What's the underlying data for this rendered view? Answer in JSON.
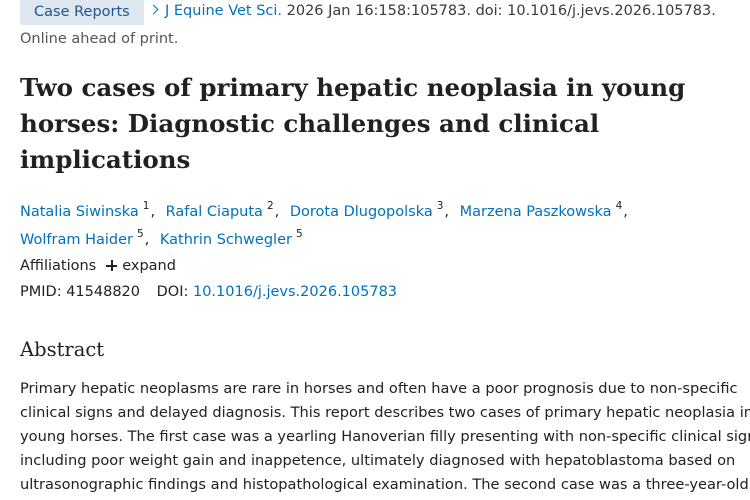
{
  "header": {
    "publication_type": "Case Reports",
    "journal": "J Equine Vet Sci.",
    "citation": "2026 Jan 16:158:105783. doi: 10.1016/j.jevs.2026.105783.",
    "status": "Online ahead of print."
  },
  "title": [
    "Two cases of primary hepatic neoplasia in young",
    "horses: Diagnostic challenges and clinical",
    "implications"
  ],
  "authors": {
    "separator": ",",
    "list": [
      {
        "name": "Natalia Siwinska",
        "affiliation": "1"
      },
      {
        "name": "Rafal Ciaputa",
        "affiliation": "2"
      },
      {
        "name": "Dorota Dlugopolska",
        "affiliation": "3"
      },
      {
        "name": "Marzena Paszkowska",
        "affiliation": "4"
      },
      {
        "name": "Wolfram Haider",
        "affiliation": "5"
      },
      {
        "name": "Kathrin Schwegler",
        "affiliation": "5"
      }
    ]
  },
  "affiliations": {
    "label": "Affiliations",
    "toggle": "expand"
  },
  "identifiers": {
    "pmid_label": "PMID:",
    "pmid": "41548820",
    "doi_label": "DOI:",
    "doi": "10.1016/j.jevs.2026.105783"
  },
  "abstract": {
    "heading": "Abstract",
    "lines": [
      "Primary hepatic neoplasms are rare in horses and often have a poor prognosis due to non-specific",
      "clinical signs and delayed diagnosis. This report describes two cases of primary hepatic neoplasia in",
      "young horses. The first case was a yearling Hanoverian filly presenting with non-specific clinical signs,",
      "including poor weight gain and inappetence, ultimately diagnosed with hepatoblastoma based on",
      "ultrasonographic findings and histopathological examination. The second case was a three-year-old"
    ]
  }
}
